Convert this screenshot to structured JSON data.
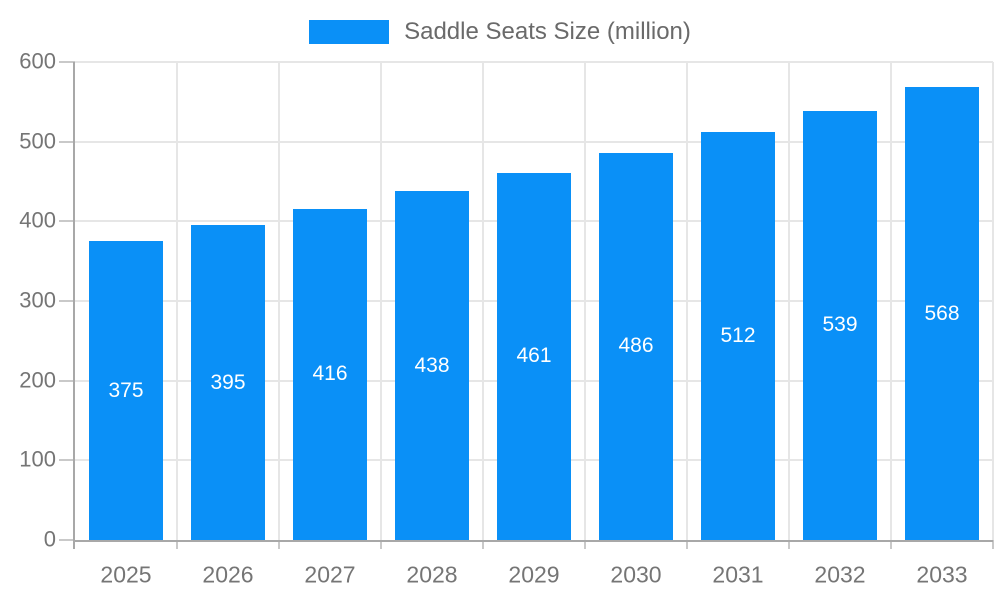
{
  "chart_data": {
    "type": "bar",
    "categories": [
      "2025",
      "2026",
      "2027",
      "2028",
      "2029",
      "2030",
      "2031",
      "2032",
      "2033"
    ],
    "values": [
      375,
      395,
      416,
      438,
      461,
      486,
      512,
      539,
      568
    ],
    "series_name": "Saddle Seats Size (million)",
    "title": "",
    "xlabel": "",
    "ylabel": "",
    "ylim": [
      0,
      600
    ],
    "yticks": [
      0,
      100,
      200,
      300,
      400,
      500,
      600
    ],
    "grid": true,
    "legend_position": "top-center",
    "bar_color": "#0a90f7",
    "bar_label_color": "#ffffff",
    "grid_color": "#e6e6e6",
    "axis_color": "#a8a8a8",
    "tick_color": "#c9c9c9",
    "axis_label_color": "#757575",
    "legend_text_color": "#6a6a6a"
  }
}
